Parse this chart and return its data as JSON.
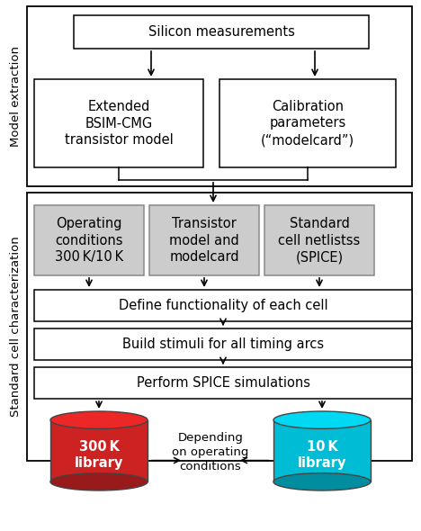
{
  "bg_color": "#ffffff",
  "section1_label": "Model extraction",
  "section2_label": "Standard cell characterization",
  "box1_text": "Silicon measurements",
  "box2_text": "Extended\nBSIM-CMG\ntransistor model",
  "box3_text": "Calibration\nparameters\n(“modelcard”)",
  "box4_text": "Operating\nconditions\n300 K/10 K",
  "box5_text": "Transistor\nmodel and\nmodelcard",
  "box6_text": "Standard\ncell netlistss\n(SPICE)",
  "box7_text": "Define functionality of each cell",
  "box8_text": "Build stimuli for all timing arcs",
  "box9_text": "Perform SPICE simulations",
  "cyl1_text": "300 K\nlibrary",
  "cyl2_text": "10 K\nlibrary",
  "middle_text": "Depending\non operating\nconditions",
  "font_size_main": 10.5,
  "font_size_section": 9.5,
  "font_size_cyl": 10.5,
  "font_size_mid": 9.5,
  "box_color_red": "#cc2222",
  "box_color_blue": "#00bcd4",
  "gray": "#cccccc",
  "gray_edge": "#888888"
}
